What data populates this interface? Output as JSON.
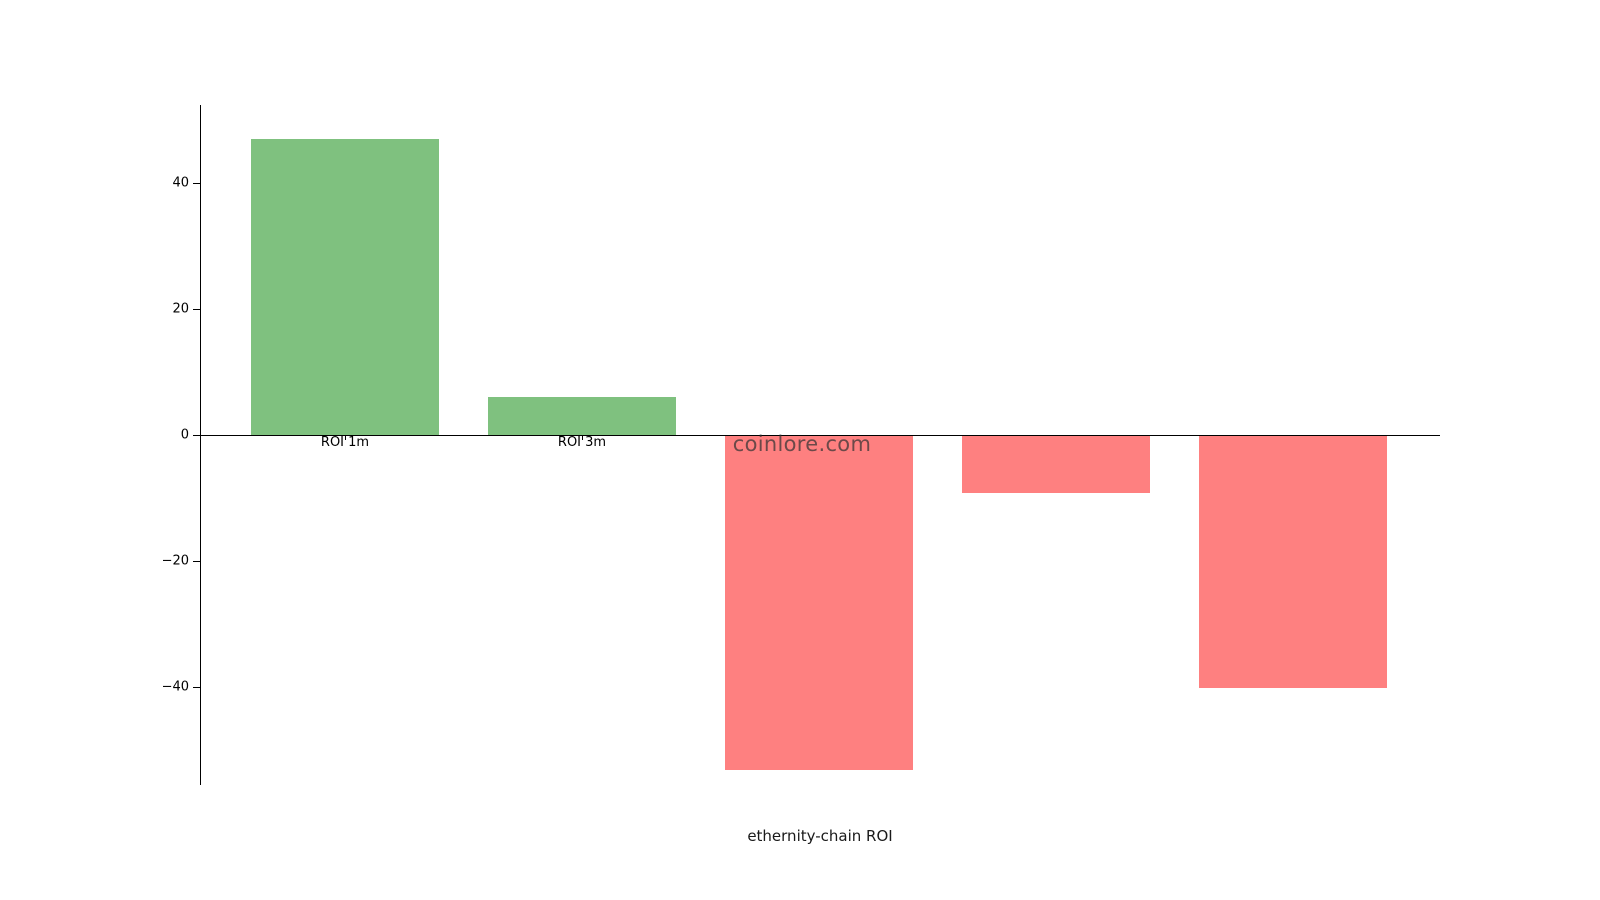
{
  "figure": {
    "background": "#ffffff",
    "watermark": "coinlore.com"
  },
  "chart_data": {
    "type": "bar",
    "title": "",
    "xlabel": "ethernity-chain ROI",
    "ylabel": "",
    "categories": [
      "ROI 1m",
      "ROI 3m",
      "",
      "",
      ""
    ],
    "values": [
      47,
      6,
      -53,
      -9,
      -40
    ],
    "positive_color": "#7fc17f",
    "negative_color": "#fe8080",
    "yticks": [
      40,
      20,
      0,
      -20,
      -40
    ],
    "ytick_labels": [
      "40",
      "20",
      "0",
      "−20",
      "−40"
    ],
    "ylim": [
      -55.5,
      52.5
    ],
    "grid": false,
    "legend": false,
    "axis_color": "#000000"
  }
}
